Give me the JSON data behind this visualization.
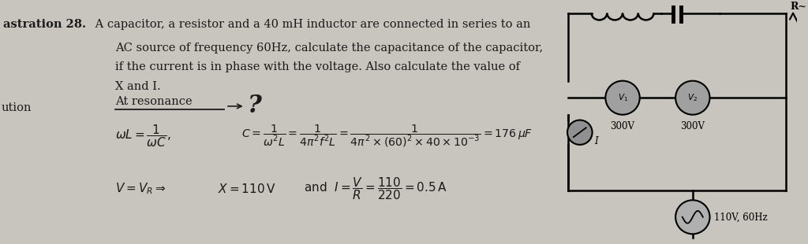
{
  "background_color": "#c8c4be",
  "text_color": "#1a1a1a",
  "title_bold": "astration 28.",
  "title_rest": " A capacitor, a resistor and a 40 mH inductor are connected in series to an",
  "body_lines": [
    "AC source of frequency 60Hz, calculate the capacitance of the capacitor,",
    "if the current is in phase with the voltage. Also calculate the value of",
    "X and I."
  ],
  "solution_label": "ution",
  "v1_label": "300V",
  "v2_label": "300V",
  "source_label": "110V, 60Hz",
  "resistor_label": "R~",
  "font_size_body": 10.5,
  "font_size_eq": 10.5
}
